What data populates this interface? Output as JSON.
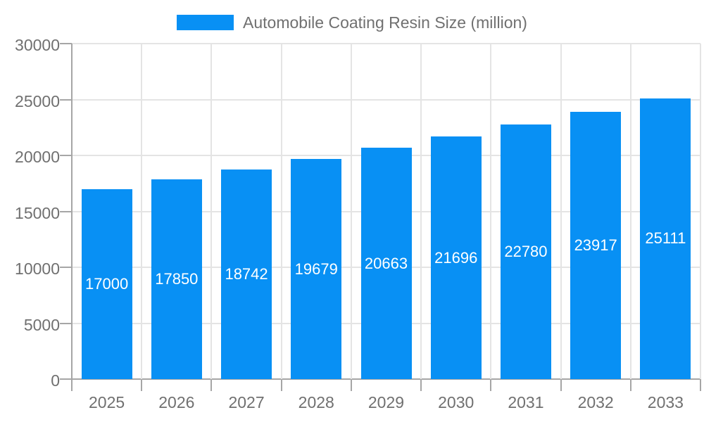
{
  "legend": {
    "label": "Automobile Coating Resin Size (million)"
  },
  "chart_data": {
    "type": "bar",
    "title": "Automobile Coating Resin Size (million)",
    "categories": [
      "2025",
      "2026",
      "2027",
      "2028",
      "2029",
      "2030",
      "2031",
      "2032",
      "2033"
    ],
    "values": [
      17000,
      17850,
      18742,
      19679,
      20663,
      21696,
      22780,
      23917,
      25111
    ],
    "xlabel": "",
    "ylabel": "",
    "ylim": [
      0,
      30000
    ],
    "ytick_step": 5000,
    "ytick_labels": [
      "0",
      "5000",
      "10000",
      "15000",
      "20000",
      "25000",
      "30000"
    ],
    "grid": true,
    "legend_position": "top",
    "bar_value_labels_visible": true,
    "colors": {
      "bar": "#0890f4",
      "bar_label": "#ffffff",
      "grid": "#e4e4e4",
      "axis": "#a6a6a6",
      "text": "#707070",
      "background": "#ffffff"
    }
  }
}
